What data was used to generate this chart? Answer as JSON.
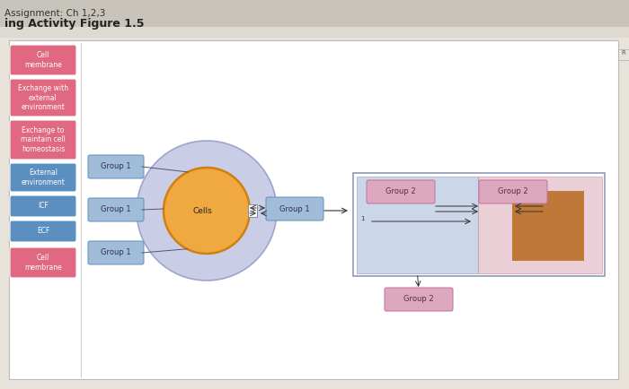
{
  "bg_color": "#e8e4db",
  "title1": "Assignment: Ch 1,2,3",
  "title2": "ing Activity Figure 1.5",
  "sidebar_items": [
    {
      "text": "Cell\nmembrane",
      "color": "#e06880",
      "text_color": "white"
    },
    {
      "text": "Exchange with\nexternal\nenvironment",
      "color": "#e06880",
      "text_color": "white"
    },
    {
      "text": "Exchange to\nmaintain cell\nhomeostasis",
      "color": "#e06880",
      "text_color": "white"
    },
    {
      "text": "External\nenvironment",
      "color": "#5a8fc0",
      "text_color": "white"
    },
    {
      "text": "ICF",
      "color": "#5a8fc0",
      "text_color": "white"
    },
    {
      "text": "ECF",
      "color": "#5a8fc0",
      "text_color": "white"
    },
    {
      "text": "Cell\nmembrane",
      "color": "#e06880",
      "text_color": "white"
    }
  ],
  "outer_circle_color": "#b8bede",
  "inner_circle_color": "#f0a840",
  "inner_circle_border": "#d08010",
  "cell_text": "Cells",
  "group1_box_color": "#a0bcd8",
  "group1_text_color": "#303050",
  "group2_box_color": "#dda8be",
  "group2_text_color": "#503040",
  "brown_rect_color": "#c07838",
  "white_bg": "#ffffff",
  "outer_rect_border": "#9098b8",
  "blue_rect_fill": "#b0c0dc",
  "pink_rect_fill": "#e0b8c0"
}
